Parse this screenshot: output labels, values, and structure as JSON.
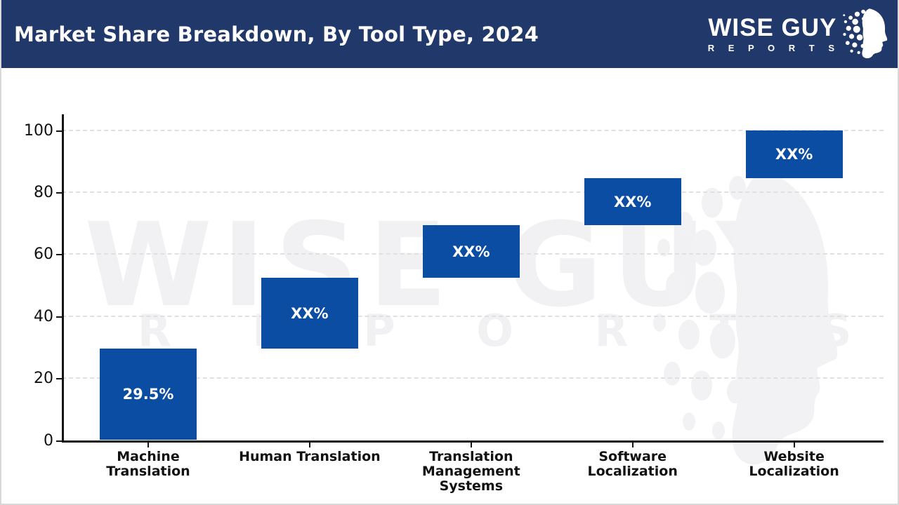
{
  "header": {
    "title": "Market Share Breakdown, By Tool Type, 2024",
    "logo_line1": "WISE GUY",
    "logo_line2": "R E P O R T S"
  },
  "watermark": {
    "line1": "WISE GUY",
    "line2": "R E P O R T S"
  },
  "chart_data": {
    "type": "bar",
    "subtype": "floating-waterfall",
    "title": "Market Share Breakdown, By Tool Type, 2024",
    "categories": [
      "Machine\nTranslation",
      "Human Translation",
      "Translation\nManagement Systems",
      "Software\nLocalization",
      "Website\nLocalization"
    ],
    "segments": [
      {
        "category": "Machine Translation",
        "start": 0,
        "end": 29.5,
        "label": "29.5%"
      },
      {
        "category": "Human Translation",
        "start": 29.5,
        "end": 52.3,
        "label": "XX%"
      },
      {
        "category": "Translation Management Systems",
        "start": 52.3,
        "end": 69.3,
        "label": "XX%"
      },
      {
        "category": "Software Localization",
        "start": 69.3,
        "end": 84.4,
        "label": "XX%"
      },
      {
        "category": "Website Localization",
        "start": 84.4,
        "end": 100,
        "label": "XX%"
      }
    ],
    "yticks": [
      0,
      20,
      40,
      60,
      80,
      100
    ],
    "ylim": [
      0,
      105
    ],
    "xlabel": "",
    "ylabel": "",
    "legend": "none",
    "grid": "horizontal-dashed",
    "colors": {
      "bar": "#0b4da2",
      "bar_label": "#ffffff",
      "axis": "#141414",
      "grid": "#e0e0e0",
      "header_bg": "#21386a",
      "watermark": "#f1f1f3"
    }
  }
}
